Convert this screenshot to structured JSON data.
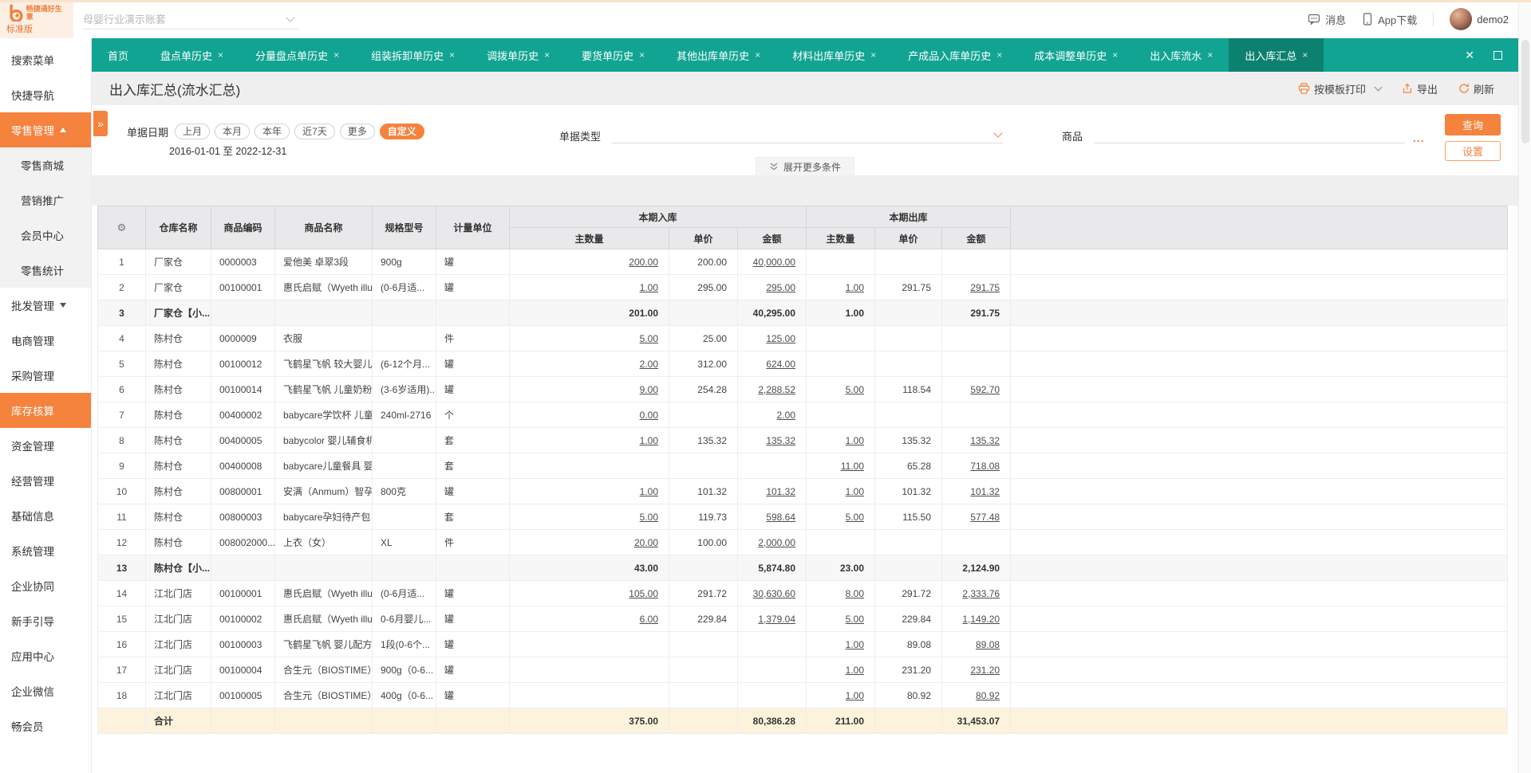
{
  "header": {
    "logo_text": "畅捷通好生意",
    "logo_edition": "标准版",
    "account_value": "母婴行业演示账套",
    "messages_label": "消息",
    "app_download_label": "App下载",
    "username": "demo2"
  },
  "sidebar": {
    "items": [
      {
        "label": "搜索菜单"
      },
      {
        "label": "快捷导航"
      },
      {
        "label": "零售管理",
        "selected": true,
        "arrow": "up"
      },
      {
        "label": "零售商城",
        "submenu": true
      },
      {
        "label": "营销推广",
        "submenu": true
      },
      {
        "label": "会员中心",
        "submenu": true
      },
      {
        "label": "零售统计",
        "submenu": true
      },
      {
        "label": "批发管理",
        "arrow": "down"
      },
      {
        "label": "电商管理"
      },
      {
        "label": "采购管理"
      },
      {
        "label": "库存核算",
        "selected": true
      },
      {
        "label": "资金管理"
      },
      {
        "label": "经营管理"
      },
      {
        "label": "基础信息"
      },
      {
        "label": "系统管理"
      },
      {
        "label": "企业协同"
      },
      {
        "label": "新手引导"
      },
      {
        "label": "应用中心"
      },
      {
        "label": "企业微信"
      },
      {
        "label": "畅会员"
      }
    ]
  },
  "tabs": {
    "items": [
      {
        "label": "首页",
        "closable": false
      },
      {
        "label": "盘点单历史",
        "closable": true
      },
      {
        "label": "分量盘点单历史",
        "closable": true
      },
      {
        "label": "组装拆卸单历史",
        "closable": true
      },
      {
        "label": "调拨单历史",
        "closable": true
      },
      {
        "label": "要货单历史",
        "closable": true
      },
      {
        "label": "其他出库单历史",
        "closable": true
      },
      {
        "label": "材料出库单历史",
        "closable": true
      },
      {
        "label": "产成品入库单历史",
        "closable": true
      },
      {
        "label": "成本调整单历史",
        "closable": true
      },
      {
        "label": "出入库流水",
        "closable": true
      },
      {
        "label": "出入库汇总",
        "closable": true,
        "active": true
      }
    ]
  },
  "page": {
    "title": "出入库汇总(流水汇总)",
    "toolbar": {
      "print_label": "按模板打印",
      "export_label": "导出",
      "refresh_label": "刷新"
    }
  },
  "filters": {
    "date_label": "单据日期",
    "date_presets": [
      "上月",
      "本月",
      "本年",
      "近7天",
      "更多"
    ],
    "date_custom": "自定义",
    "date_range": "2016-01-01 至 2022-12-31",
    "doc_type_label": "单据类型",
    "product_label": "商品",
    "product_more": "...",
    "search_button": "查询",
    "settings_button": "设置",
    "expand_more": "展开更多条件",
    "collapse_glyph": "»"
  },
  "table": {
    "gear_glyph": "⚙",
    "columns": [
      "仓库名称",
      "商品编码",
      "商品名称",
      "规格型号",
      "计量单位"
    ],
    "group_in": "本期入库",
    "group_out": "本期出库",
    "sub_columns": [
      "主数量",
      "单价",
      "金额"
    ],
    "rows": [
      {
        "n": "1",
        "warehouse": "厂家仓",
        "code": "0000003",
        "name": "爱他美 卓翠3段",
        "spec": "900g",
        "unit": "罐",
        "in_qty": "200.00",
        "in_price": "200.00",
        "in_amt": "40,000.00",
        "out_qty": "",
        "out_price": "",
        "out_amt": ""
      },
      {
        "n": "2",
        "warehouse": "厂家仓",
        "code": "00100001",
        "name": "惠氏启赋（Wyeth illu...",
        "spec": "(0-6月适...",
        "unit": "罐",
        "in_qty": "1.00",
        "in_price": "295.00",
        "in_amt": "295.00",
        "out_qty": "1.00",
        "out_price": "291.75",
        "out_amt": "291.75"
      },
      {
        "n": "3",
        "warehouse": "厂家仓【小...",
        "type": "subtotal",
        "code": "",
        "name": "",
        "spec": "",
        "unit": "",
        "in_qty": "201.00",
        "in_price": "",
        "in_amt": "40,295.00",
        "out_qty": "1.00",
        "out_price": "",
        "out_amt": "291.75"
      },
      {
        "n": "4",
        "warehouse": "陈村仓",
        "code": "0000009",
        "name": "衣服",
        "spec": "",
        "unit": "件",
        "in_qty": "5.00",
        "in_price": "25.00",
        "in_amt": "125.00",
        "out_qty": "",
        "out_price": "",
        "out_amt": ""
      },
      {
        "n": "5",
        "warehouse": "陈村仓",
        "code": "00100012",
        "name": "飞鹤星飞帆 较大婴儿配...",
        "spec": "(6-12个月...",
        "unit": "罐",
        "in_qty": "2.00",
        "in_price": "312.00",
        "in_amt": "624.00",
        "out_qty": "",
        "out_price": "",
        "out_amt": ""
      },
      {
        "n": "6",
        "warehouse": "陈村仓",
        "code": "00100014",
        "name": "飞鹤星飞帆 儿童奶粉 4...",
        "spec": "(3-6岁适用)...",
        "unit": "罐",
        "in_qty": "9.00",
        "in_price": "254.28",
        "in_amt": "2,288.52",
        "out_qty": "5.00",
        "out_price": "118.54",
        "out_amt": "592.70"
      },
      {
        "n": "7",
        "warehouse": "陈村仓",
        "code": "00400002",
        "name": "babycare学饮杯 儿童...",
        "spec": "240ml-2716",
        "unit": "个",
        "in_qty": "0.00",
        "in_price": "",
        "in_amt": "2.00",
        "out_qty": "",
        "out_price": "",
        "out_amt": ""
      },
      {
        "n": "8",
        "warehouse": "陈村仓",
        "code": "00400005",
        "name": "babycolor 婴儿辅食机 ...",
        "spec": "",
        "unit": "套",
        "in_qty": "1.00",
        "in_price": "135.32",
        "in_amt": "135.32",
        "out_qty": "1.00",
        "out_price": "135.32",
        "out_amt": "135.32"
      },
      {
        "n": "9",
        "warehouse": "陈村仓",
        "code": "00400008",
        "name": "babycare儿童餐具 婴...",
        "spec": "",
        "unit": "套",
        "in_qty": "",
        "in_price": "",
        "in_amt": "",
        "out_qty": "11.00",
        "out_price": "65.28",
        "out_amt": "718.08"
      },
      {
        "n": "10",
        "warehouse": "陈村仓",
        "code": "00800001",
        "name": "安满（Anmum）智孕...",
        "spec": "800克",
        "unit": "罐",
        "in_qty": "1.00",
        "in_price": "101.32",
        "in_amt": "101.32",
        "out_qty": "1.00",
        "out_price": "101.32",
        "out_amt": "101.32"
      },
      {
        "n": "11",
        "warehouse": "陈村仓",
        "code": "00800003",
        "name": "babycare孕妇待产包 ...",
        "spec": "",
        "unit": "套",
        "in_qty": "5.00",
        "in_price": "119.73",
        "in_amt": "598.64",
        "out_qty": "5.00",
        "out_price": "115.50",
        "out_amt": "577.48"
      },
      {
        "n": "12",
        "warehouse": "陈村仓",
        "code": "008002000...",
        "name": "上衣（女）",
        "spec": "XL",
        "unit": "件",
        "in_qty": "20.00",
        "in_price": "100.00",
        "in_amt": "2,000.00",
        "out_qty": "",
        "out_price": "",
        "out_amt": ""
      },
      {
        "n": "13",
        "warehouse": "陈村仓【小...",
        "type": "subtotal",
        "code": "",
        "name": "",
        "spec": "",
        "unit": "",
        "in_qty": "43.00",
        "in_price": "",
        "in_amt": "5,874.80",
        "out_qty": "23.00",
        "out_price": "",
        "out_amt": "2,124.90"
      },
      {
        "n": "14",
        "warehouse": "江北门店",
        "code": "00100001",
        "name": "惠氏启赋（Wyeth illu...",
        "spec": "(0-6月适...",
        "unit": "罐",
        "in_qty": "105.00",
        "in_price": "291.72",
        "in_amt": "30,630.60",
        "out_qty": "8.00",
        "out_price": "291.72",
        "out_amt": "2,333.76"
      },
      {
        "n": "15",
        "warehouse": "江北门店",
        "code": "00100002",
        "name": "惠氏启赋（Wyeth illu...",
        "spec": "0-6月婴儿...",
        "unit": "罐",
        "in_qty": "6.00",
        "in_price": "229.84",
        "in_amt": "1,379.04",
        "out_qty": "5.00",
        "out_price": "229.84",
        "out_amt": "1,149.20"
      },
      {
        "n": "16",
        "warehouse": "江北门店",
        "code": "00100003",
        "name": "飞鹤星飞帆 婴儿配方奶...",
        "spec": "1段(0-6个...",
        "unit": "罐",
        "in_qty": "",
        "in_price": "",
        "in_amt": "",
        "out_qty": "1.00",
        "out_price": "89.08",
        "out_amt": "89.08"
      },
      {
        "n": "17",
        "warehouse": "江北门店",
        "code": "00100004",
        "name": "合生元（BIOSTIME）...",
        "spec": "900g（0-6...",
        "unit": "罐",
        "in_qty": "",
        "in_price": "",
        "in_amt": "",
        "out_qty": "1.00",
        "out_price": "231.20",
        "out_amt": "231.20"
      },
      {
        "n": "18",
        "warehouse": "江北门店",
        "code": "00100005",
        "name": "合生元（BIOSTIME）...",
        "spec": "400g（0-6...",
        "unit": "罐",
        "in_qty": "",
        "in_price": "",
        "in_amt": "",
        "out_qty": "1.00",
        "out_price": "80.92",
        "out_amt": "80.92"
      }
    ],
    "total": {
      "label": "合计",
      "in_qty": "375.00",
      "in_amt": "80,386.28",
      "out_qty": "211.00",
      "out_amt": "31,453.07"
    }
  },
  "colors": {
    "accent_orange": "#f5823d",
    "tabbar_teal": "#12a492",
    "tab_active_teal": "#0c8170",
    "total_row_bg": "#fdf3dd"
  }
}
